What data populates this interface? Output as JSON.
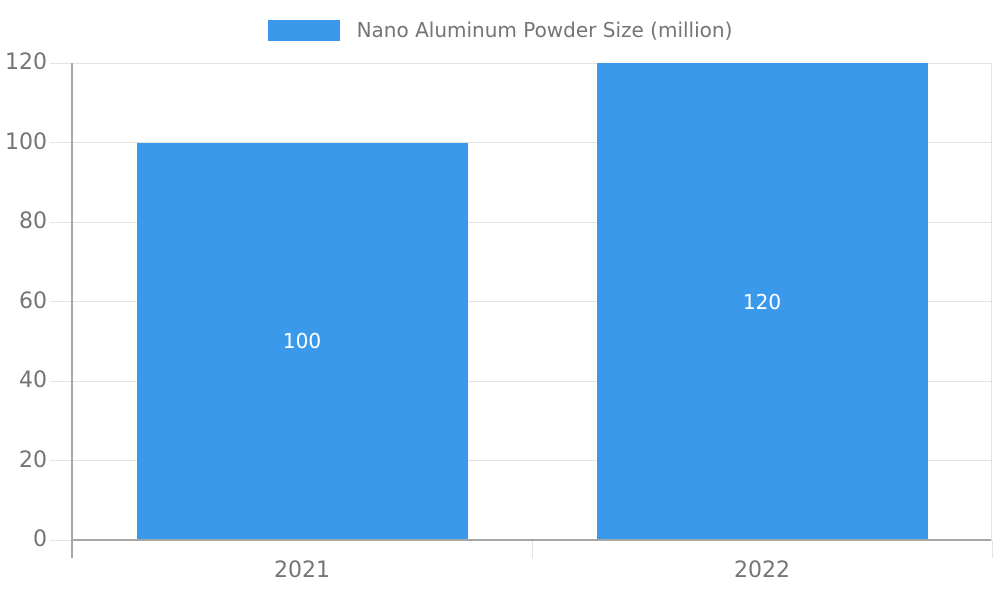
{
  "legend": {
    "label": "Nano Aluminum Powder Size (million)"
  },
  "colors": {
    "accent": "#3b99ec",
    "axis_text": "#757575",
    "axis_line": "#a6a6a6",
    "gridline": "#e3e3e3",
    "bar_label": "#ffffff"
  },
  "chart_data": {
    "type": "bar",
    "title": "Nano Aluminum Powder Size (million)",
    "categories": [
      "2021",
      "2022"
    ],
    "series": [
      {
        "name": "Nano Aluminum Powder Size (million)",
        "values": [
          100,
          120
        ],
        "color": "#3b99ec"
      }
    ],
    "values": [
      100,
      120
    ],
    "data_labels": [
      "100",
      "120"
    ],
    "data_label_position": "inside-center",
    "xlabel": "",
    "ylabel": "",
    "ylim": [
      0,
      120
    ],
    "yticks": [
      0,
      20,
      40,
      60,
      80,
      100,
      120
    ],
    "grid": true,
    "legend_position": "top-center",
    "background": "#ffffff"
  }
}
